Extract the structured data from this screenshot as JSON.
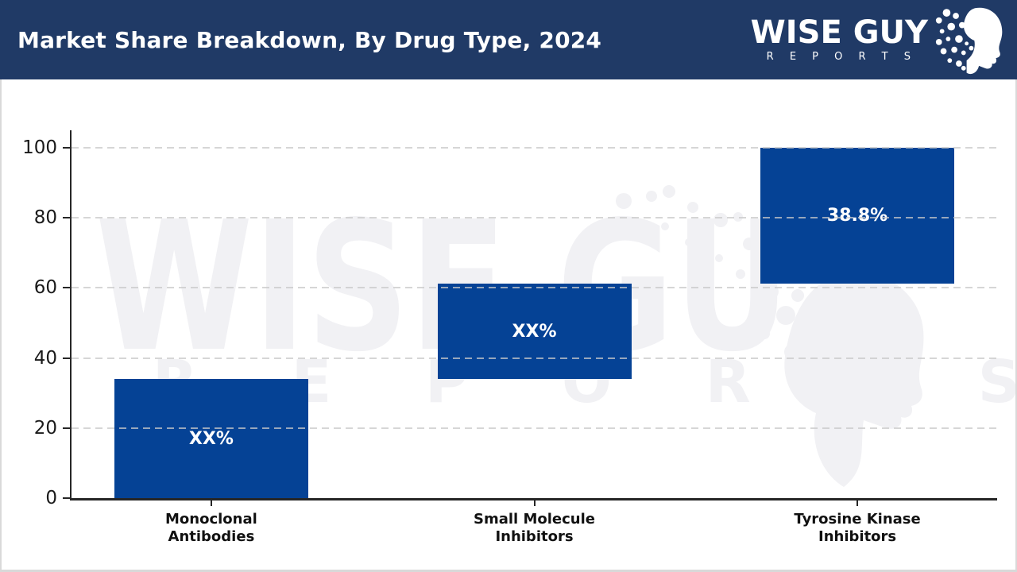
{
  "header": {
    "title": "Market Share Breakdown, By Drug Type, 2024",
    "logo": {
      "wordmark": "WISE GUY",
      "subtext": "R E P O R T S"
    }
  },
  "watermark": {
    "wordmark": "WISE GUY",
    "subtext": "R E P O R T S"
  },
  "colors": {
    "header_bg": "#203a66",
    "bar_fill": "#054295",
    "bar_label_text": "#ffffff",
    "grid_line": "#c9c9c9",
    "axis_line": "#262626",
    "tick_label_text": "#1a1a1a",
    "watermark": "#f1f1f4",
    "frame_border": "#d9d9d9"
  },
  "chart_data": {
    "type": "bar",
    "subtype": "waterfall-floating-bars",
    "title": "Market Share Breakdown, By Drug Type, 2024",
    "categories": [
      [
        "Monoclonal",
        "Antibodies"
      ],
      [
        "Small Molecule",
        "Inhibitors"
      ],
      [
        "Tyrosine Kinase",
        "Inhibitors"
      ]
    ],
    "segments": [
      {
        "start": 0,
        "end": 34,
        "label": "XX%"
      },
      {
        "start": 34,
        "end": 61.2,
        "label": "XX%"
      },
      {
        "start": 61.2,
        "end": 100,
        "label": "38.8%"
      }
    ],
    "yticks": [
      0,
      20,
      40,
      60,
      80,
      100
    ],
    "ylim": [
      0,
      100
    ],
    "xlabel": "",
    "ylabel": "",
    "grid": "horizontal-dashed",
    "legend": "none"
  }
}
